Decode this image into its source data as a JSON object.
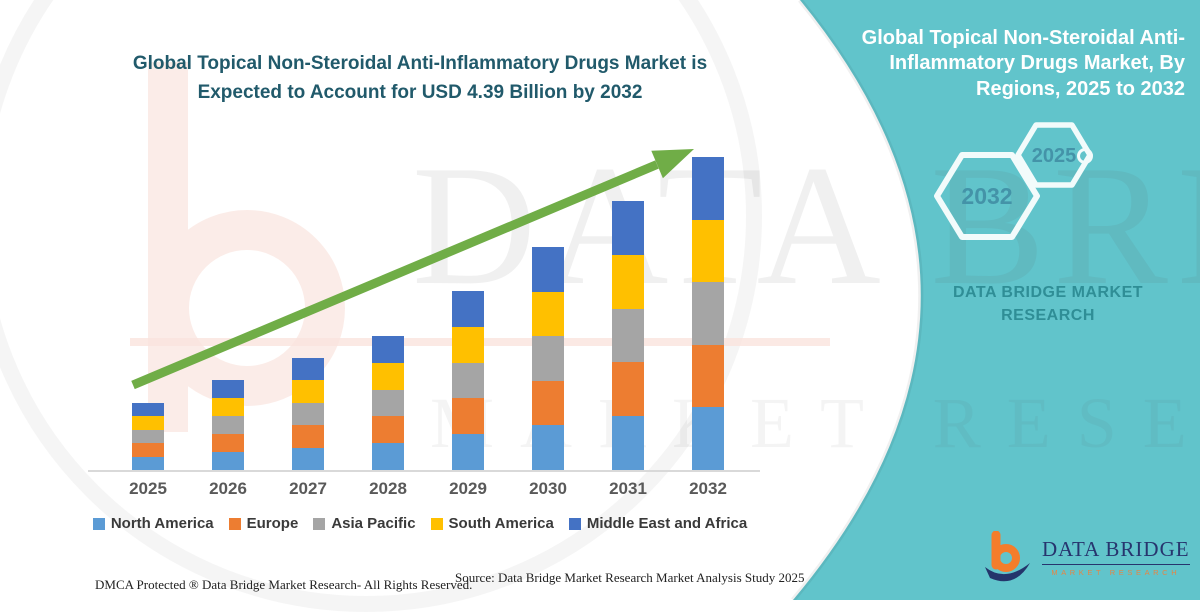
{
  "left_panel": {
    "title": "Global Topical Non-Steroidal Anti-Inflammatory Drugs Market is Expected to Account for USD 4.39 Billion by 2032",
    "footer_left": "DMCA Protected ® Data Bridge Market Research-  All Rights Reserved.",
    "footer_source": "Source: Data Bridge Market Research  Market Analysis Study 2025"
  },
  "watermarks": {
    "brand_text_large": "DATA BRIDGE",
    "brand_text_small": "MARKET RESEARCH"
  },
  "right_panel": {
    "background_color": "#61c4cb",
    "title": "Global Topical Non-Steroidal Anti-Inflammatory Drugs Market, By Regions, 2025 to 2032",
    "hexagon_large_year": "2032",
    "hexagon_small_year": "2025",
    "year_text_color": "#4493a8",
    "brand_text": "DATA BRIDGE MARKET RESEARCH",
    "logo": {
      "name": "DATA BRIDGE",
      "subtext": "MARKET RESEARCH"
    }
  },
  "chart_data": {
    "type": "bar",
    "stacked": true,
    "title": "Global Topical Non-Steroidal Anti-Inflammatory Drugs Market is Expected to Account for USD 4.39 Billion by 2032",
    "unit": "USD Billion",
    "xlabel": "",
    "ylabel": "",
    "grid": false,
    "legend_position": "bottom",
    "y_axis_shown": false,
    "ylim": [
      0,
      4.6
    ],
    "trend_arrow_color": "#70ad47",
    "categories": [
      "2025",
      "2026",
      "2027",
      "2028",
      "2029",
      "2030",
      "2031",
      "2032"
    ],
    "totals_usd_billion": [
      0.95,
      1.27,
      1.57,
      1.88,
      2.51,
      3.13,
      3.77,
      4.39
    ],
    "series": [
      {
        "name": "North America",
        "color": "#5b9bd5",
        "values": [
          0.19,
          0.254,
          0.314,
          0.376,
          0.502,
          0.626,
          0.754,
          0.878
        ]
      },
      {
        "name": "Europe",
        "color": "#ed7d31",
        "values": [
          0.19,
          0.254,
          0.314,
          0.376,
          0.502,
          0.626,
          0.754,
          0.878
        ]
      },
      {
        "name": "Asia Pacific",
        "color": "#a5a5a5",
        "values": [
          0.19,
          0.254,
          0.314,
          0.376,
          0.502,
          0.626,
          0.754,
          0.878
        ]
      },
      {
        "name": "South America",
        "color": "#ffc000",
        "values": [
          0.19,
          0.254,
          0.314,
          0.376,
          0.502,
          0.626,
          0.754,
          0.878
        ]
      },
      {
        "name": "Middle East and Africa",
        "color": "#4472c4",
        "values": [
          0.19,
          0.254,
          0.314,
          0.376,
          0.502,
          0.626,
          0.754,
          0.878
        ]
      }
    ]
  }
}
